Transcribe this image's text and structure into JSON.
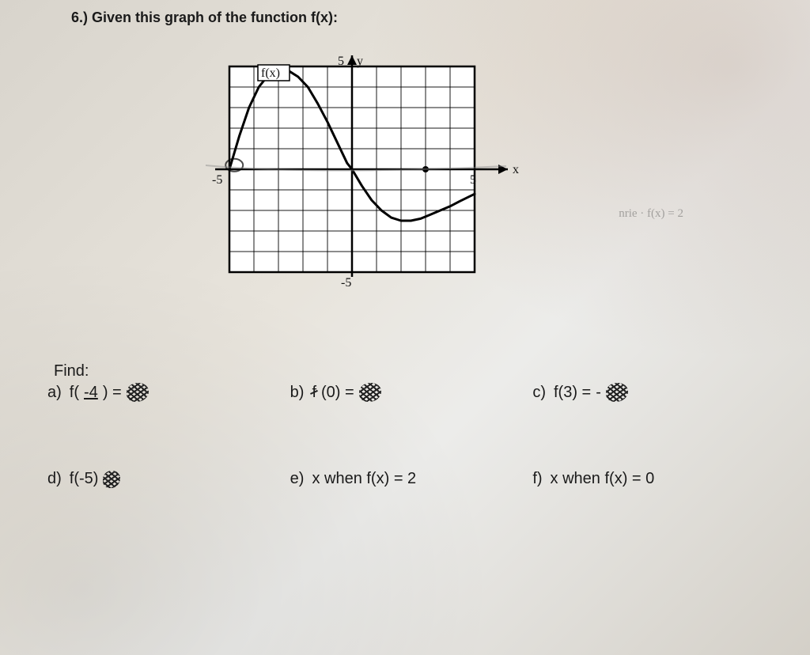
{
  "question": {
    "number": "6.)",
    "prompt": "Given this graph of the function f(x):"
  },
  "graph": {
    "grid": {
      "xmin": -5,
      "xmax": 5,
      "ymin": -5,
      "ymax": 5,
      "step": 1
    },
    "axis_labels": {
      "x": "x",
      "y": "y",
      "xneg": "-5",
      "xpos": "5",
      "ytop": "5",
      "ybot": "-5"
    },
    "curve_label": "f(x)",
    "background": "#ffffff",
    "grid_color": "#000000",
    "grid_stroke": 1,
    "border_stroke": 2.5,
    "curve_stroke": 3,
    "curve_color": "#000000",
    "curve_points": [
      [
        -5.0,
        0.0
      ],
      [
        -4.6,
        1.6
      ],
      [
        -4.2,
        3.0
      ],
      [
        -3.8,
        4.0
      ],
      [
        -3.4,
        4.6
      ],
      [
        -3.0,
        4.9
      ],
      [
        -2.6,
        4.8
      ],
      [
        -2.2,
        4.5
      ],
      [
        -1.8,
        4.0
      ],
      [
        -1.4,
        3.2
      ],
      [
        -1.0,
        2.3
      ],
      [
        -0.6,
        1.3
      ],
      [
        -0.2,
        0.3
      ],
      [
        0.0,
        0.0
      ],
      [
        0.4,
        -0.8
      ],
      [
        0.8,
        -1.5
      ],
      [
        1.2,
        -2.0
      ],
      [
        1.6,
        -2.35
      ],
      [
        2.0,
        -2.5
      ],
      [
        2.4,
        -2.5
      ],
      [
        2.8,
        -2.4
      ],
      [
        3.2,
        -2.2
      ],
      [
        3.6,
        -2.0
      ],
      [
        4.0,
        -1.8
      ],
      [
        4.4,
        -1.55
      ],
      [
        5.0,
        -1.2
      ]
    ]
  },
  "find_label": "Find:",
  "answers": {
    "a": {
      "letter": "a)",
      "expr_pre": "f(",
      "expr_arg": "-4",
      "expr_post": ") =",
      "underline_arg": true,
      "scribble": true
    },
    "b": {
      "letter": "b)",
      "expr": "f(0) =",
      "strike_f": true,
      "scribble": true
    },
    "c": {
      "letter": "c)",
      "expr": "f(3) =",
      "neg": "-",
      "scribble": true
    },
    "d": {
      "letter": "d)",
      "expr": "f(-5)",
      "scribble": true
    },
    "e": {
      "letter": "e)",
      "expr": "x when f(x) = 2"
    },
    "f": {
      "letter": "f)",
      "expr": "x when f(x) = 0"
    }
  },
  "margin_note": "nrie · f(x) = 2"
}
